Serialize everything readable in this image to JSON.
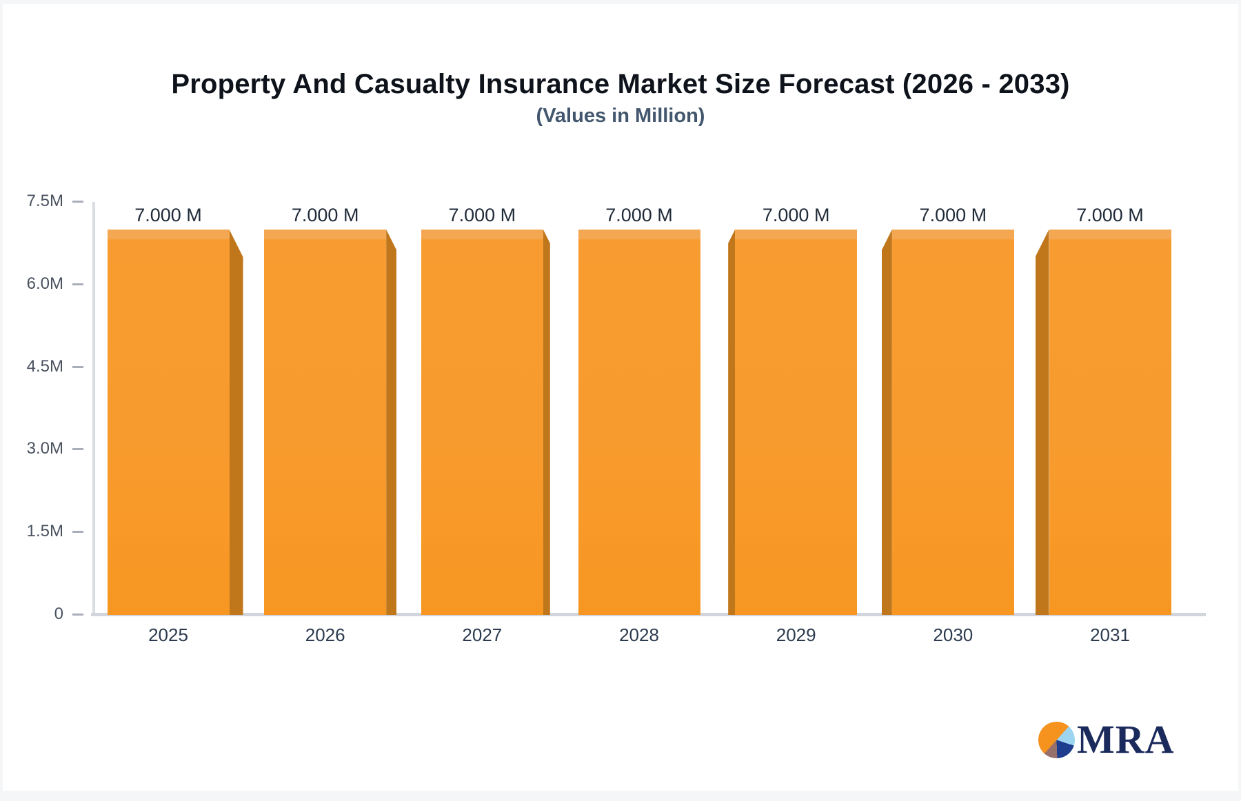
{
  "header": {
    "title": "Property And Casualty Insurance Market Size Forecast (2026 - 2033)",
    "subtitle": "(Values in Million)"
  },
  "chart_data": {
    "type": "bar",
    "title": "Property And Casualty Insurance Market Size Forecast (2026 - 2033)",
    "subtitle": "(Values in Million)",
    "categories": [
      "2025",
      "2026",
      "2027",
      "2028",
      "2029",
      "2030",
      "2031"
    ],
    "values": [
      7.0,
      7.0,
      7.0,
      7.0,
      7.0,
      7.0,
      7.0
    ],
    "bar_value_labels": [
      "7.000 M",
      "7.000 M",
      "7.000 M",
      "7.000 M",
      "7.000 M",
      "7.000 M",
      "7.000 M"
    ],
    "xlabel": "",
    "ylabel": "",
    "ylim": [
      0,
      7.5
    ],
    "yticks": [
      {
        "label": "7.5M",
        "value": 7.5
      },
      {
        "label": "6.0M",
        "value": 6.0
      },
      {
        "label": "4.5M",
        "value": 4.5
      },
      {
        "label": "3.0M",
        "value": 3.0
      },
      {
        "label": "1.5M",
        "value": 1.5
      },
      {
        "label": "0",
        "value": 0
      }
    ],
    "grid": false,
    "legend": false,
    "bar_color": "#F8992B",
    "bar_side_color": "#C0761A",
    "style": "3d-perspective-toward-center"
  },
  "logo": {
    "text": "MRA",
    "pie_colors": [
      "#F6921E",
      "#9DD4F0",
      "#1F3D8F",
      "#96716B"
    ]
  }
}
